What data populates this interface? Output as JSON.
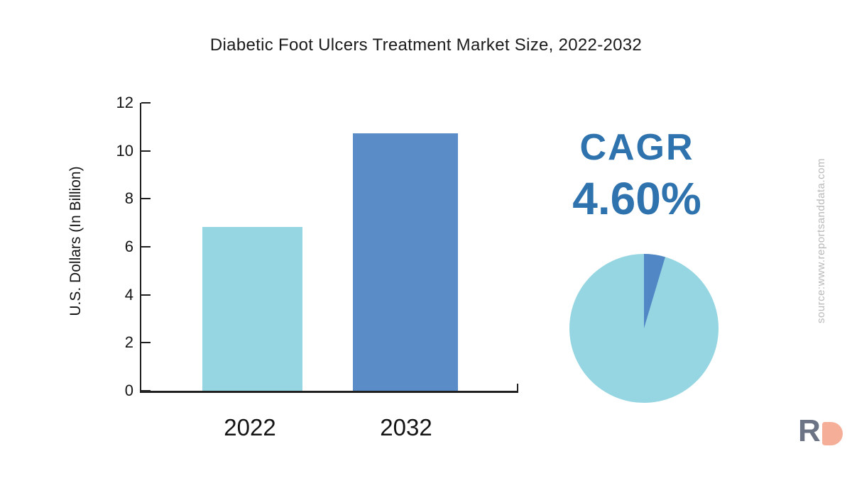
{
  "title": "Diabetic Foot Ulcers Treatment Market Size, 2022-2032",
  "chart_data": {
    "type": "bar",
    "categories": [
      "2022",
      "2032"
    ],
    "values": [
      6.84,
      10.72
    ],
    "title": "Diabetic Foot Ulcers Treatment Market Size, 2022-2032",
    "xlabel": "",
    "ylabel": "U.S. Dollars (In Billion)",
    "ylim": [
      0,
      12
    ],
    "yticks": [
      0,
      2,
      4,
      6,
      8,
      10,
      12
    ],
    "bar_colors": [
      "#95d6e2",
      "#5a8dc8"
    ],
    "grid": false,
    "legend": "none"
  },
  "cagr": {
    "label": "CAGR",
    "value": "4.60%",
    "text_color": "#2e72ae",
    "pie": {
      "percent": 4.6,
      "slice_color": "#5287c6",
      "base_color": "#95d6e2"
    }
  },
  "source_text": "source:www.reportsanddata.com",
  "logo": {
    "letter_r": "R",
    "r_color": "#6b7384",
    "d_color": "#f5ae98"
  },
  "colors": {
    "axis": "#1f1f1f",
    "title_text": "#1b1b1b",
    "source_text": "#b9b9b9"
  }
}
